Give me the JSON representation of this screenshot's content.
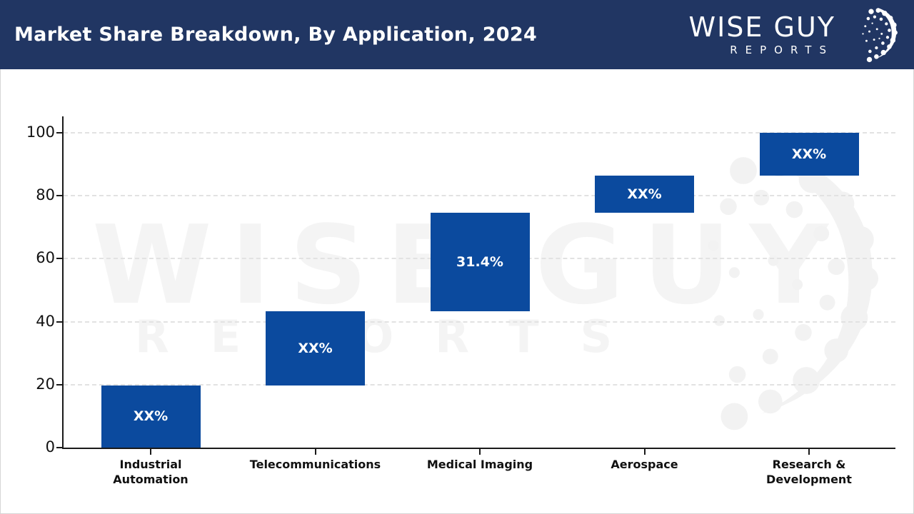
{
  "header": {
    "title": "Market Share Breakdown, By Application, 2024",
    "logo": {
      "line1": "WISE GUY",
      "line2": "REPORTS"
    }
  },
  "watermark": {
    "line1": "WISE GUY",
    "line2": "REPORTS"
  },
  "chart_data": {
    "type": "bar",
    "subtype": "waterfall",
    "title": "Market Share Breakdown, By Application, 2024",
    "categories": [
      "Industrial\nAutomation",
      "Telecommunications",
      "Medical Imaging",
      "Aerospace",
      "Research &\nDevelopment"
    ],
    "bars": [
      {
        "category": "Industrial Automation",
        "start": 0,
        "end": 19.8,
        "label": "XX%"
      },
      {
        "category": "Telecommunications",
        "start": 19.8,
        "end": 43.2,
        "label": "XX%"
      },
      {
        "category": "Medical Imaging",
        "start": 43.2,
        "end": 74.6,
        "label": "31.4%"
      },
      {
        "category": "Aerospace",
        "start": 74.6,
        "end": 86.4,
        "label": "XX%"
      },
      {
        "category": "Research & Development",
        "start": 86.4,
        "end": 100,
        "label": "XX%"
      }
    ],
    "xlabel": "",
    "ylabel": "",
    "ylim": [
      0,
      100
    ],
    "yticks": [
      0,
      20,
      40,
      60,
      80,
      100
    ],
    "grid": "horizontal-dashed",
    "legend": "none",
    "colors": {
      "bar": "#0b4a9e",
      "bar_label": "#ffffff",
      "header_background": "#213663",
      "axis": "#1a1a1a",
      "gridline": "#e2e2e2",
      "watermark": "#f4f4f4"
    }
  }
}
